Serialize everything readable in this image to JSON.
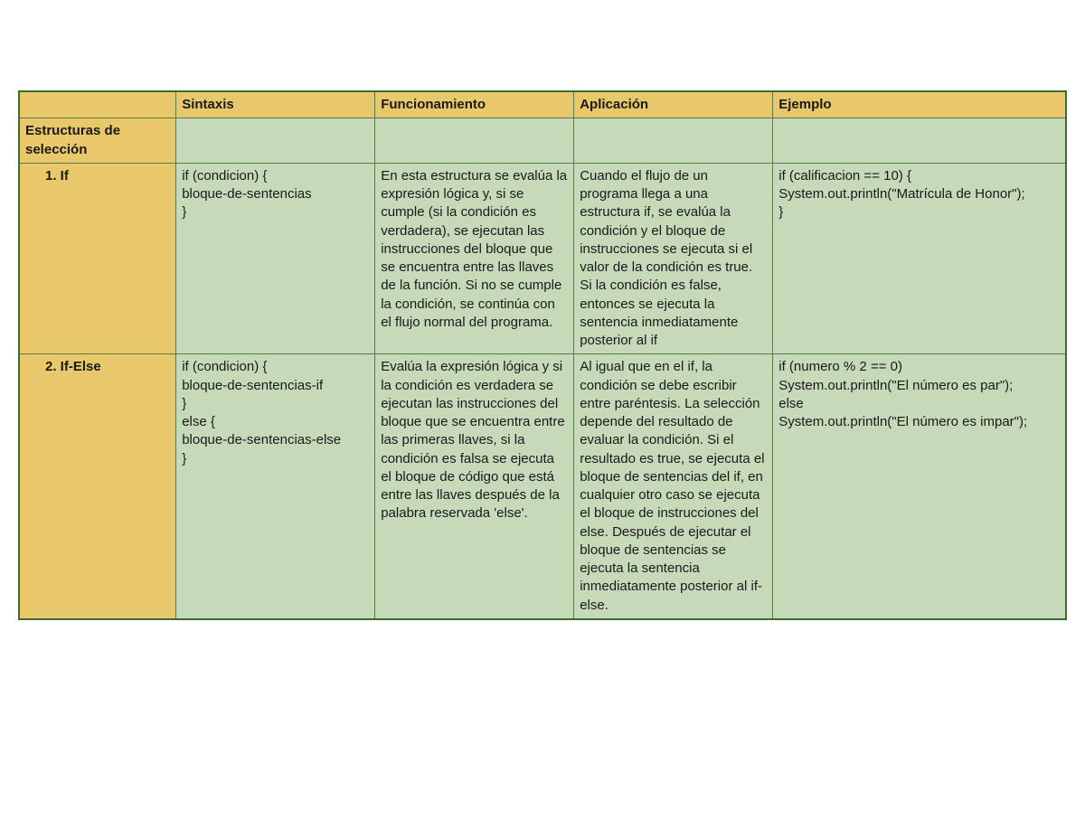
{
  "table": {
    "headers": {
      "blank": "",
      "sintaxis": "Sintaxis",
      "funcionamiento": "Funcionamiento",
      "aplicacion": "Aplicación",
      "ejemplo": "Ejemplo"
    },
    "section_label": "Estructuras de selección",
    "rows": [
      {
        "label": "1.  If",
        "sintaxis": "if (condicion) {\nbloque-de-sentencias\n}",
        "funcionamiento": "En esta estructura se evalúa la expresión lógica y, si se cumple (si la condición es verdadera), se ejecutan las instrucciones del bloque que se encuentra entre las llaves de la función. Si no se cumple la condición, se continúa con el flujo normal del programa.",
        "aplicacion": "Cuando el flujo de un programa llega a una estructura if, se evalúa la condición y el bloque de instrucciones se ejecuta si el valor de la condición es true. Si la condición es false, entonces se ejecuta la sentencia inmediatamente posterior al if",
        "ejemplo": "if (calificacion == 10) {\nSystem.out.println(\"Matrícula de Honor\");\n}"
      },
      {
        "label": "2.  If-Else",
        "sintaxis": "if (condicion) {\nbloque-de-sentencias-if\n}\nelse {\nbloque-de-sentencias-else\n}",
        "funcionamiento": "Evalúa la expresión lógica y si la condición es verdadera se ejecutan las instrucciones del bloque que se encuentra entre las primeras llaves, si la condición es falsa se ejecuta el bloque de código que está entre las llaves después de la palabra reservada 'else'.",
        "aplicacion": "Al igual que en el if, la condición se debe escribir entre paréntesis. La selección depende del resultado de evaluar la condición. Si el resultado es true, se ejecuta el bloque de sentencias del if, en cualquier otro caso se ejecuta el bloque de instrucciones del else. Después de ejecutar el bloque de sentencias se ejecuta la sentencia inmediatamente posterior al if-else.",
        "ejemplo": "if (numero % 2 == 0)\nSystem.out.println(\"El número es par\");\nelse\nSystem.out.println(\"El número es impar\");"
      }
    ]
  },
  "colors": {
    "header_bg": "#e8c86a",
    "body_bg": "#c6d9b8",
    "border": "#5a7a4a",
    "border_outer": "#3f6b2f"
  }
}
